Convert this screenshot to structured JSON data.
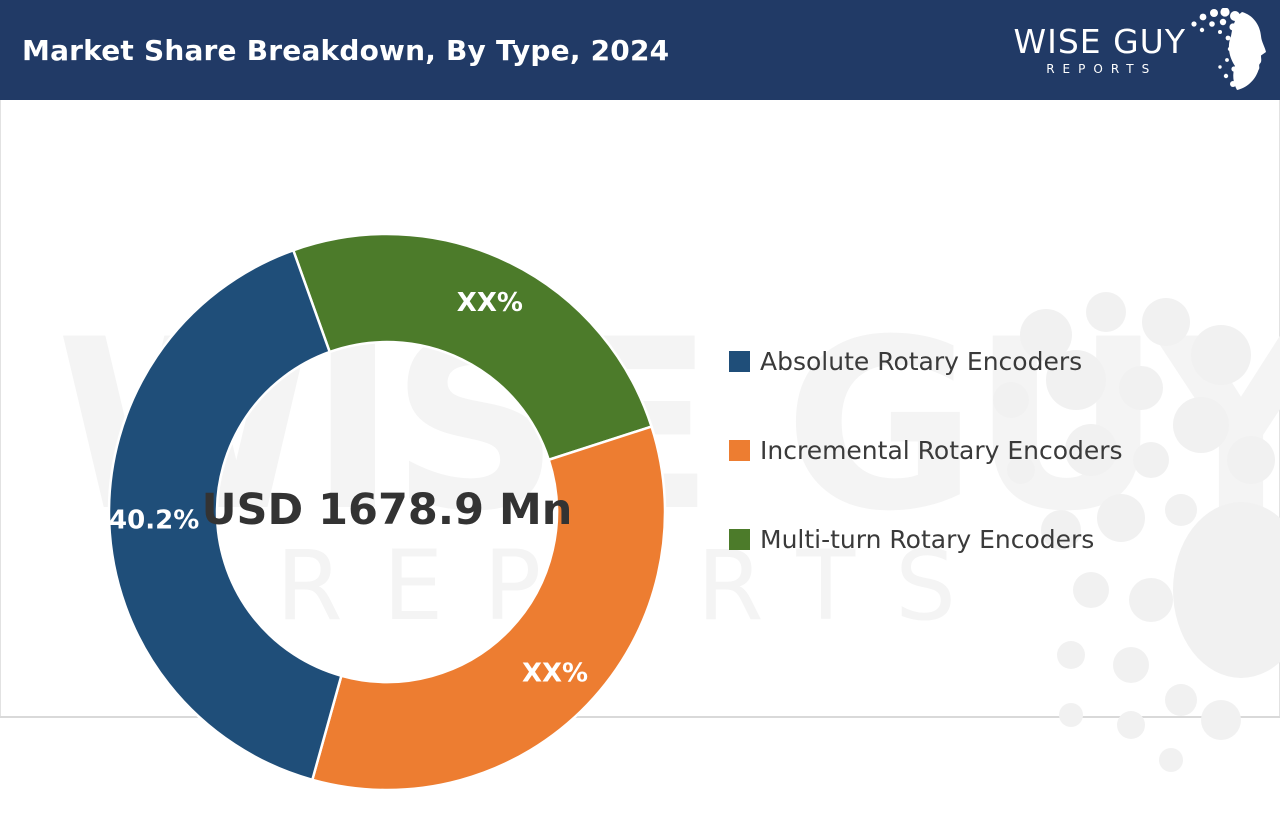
{
  "header": {
    "title": "Market Share Breakdown, By Type, 2024"
  },
  "logo": {
    "line1": "WISE GUY",
    "line2": "REPORTS"
  },
  "watermark": {
    "line1": "WISE GUY",
    "line2": "REPORTS"
  },
  "colors": {
    "header_bg": "#213A66",
    "legend_text": "#3A3A3A",
    "center_text": "#333333",
    "slice_label_text": "#FFFFFF",
    "watermark": "#F4F4F4"
  },
  "chart_data": {
    "type": "pie",
    "subtype": "donut",
    "title": "Market Share Breakdown, By Type, 2024",
    "center_label": "USD 1678.9 Mn",
    "donut_hole_ratio": 0.61,
    "start_angle_deg": -19.7,
    "legend_position": "right",
    "series": [
      {
        "name": "Absolute Rotary Encoders",
        "display_label": "40.2%",
        "value_pct": 40.2,
        "color": "#1F4E79"
      },
      {
        "name": "Incremental Rotary Encoders",
        "display_label": "XX%",
        "value_pct": 34.3,
        "color": "#ED7D31"
      },
      {
        "name": "Multi-turn Rotary Encoders",
        "display_label": "XX%",
        "value_pct": 25.5,
        "color": "#4C7B2A"
      }
    ],
    "draw_order": [
      2,
      1,
      0
    ]
  }
}
